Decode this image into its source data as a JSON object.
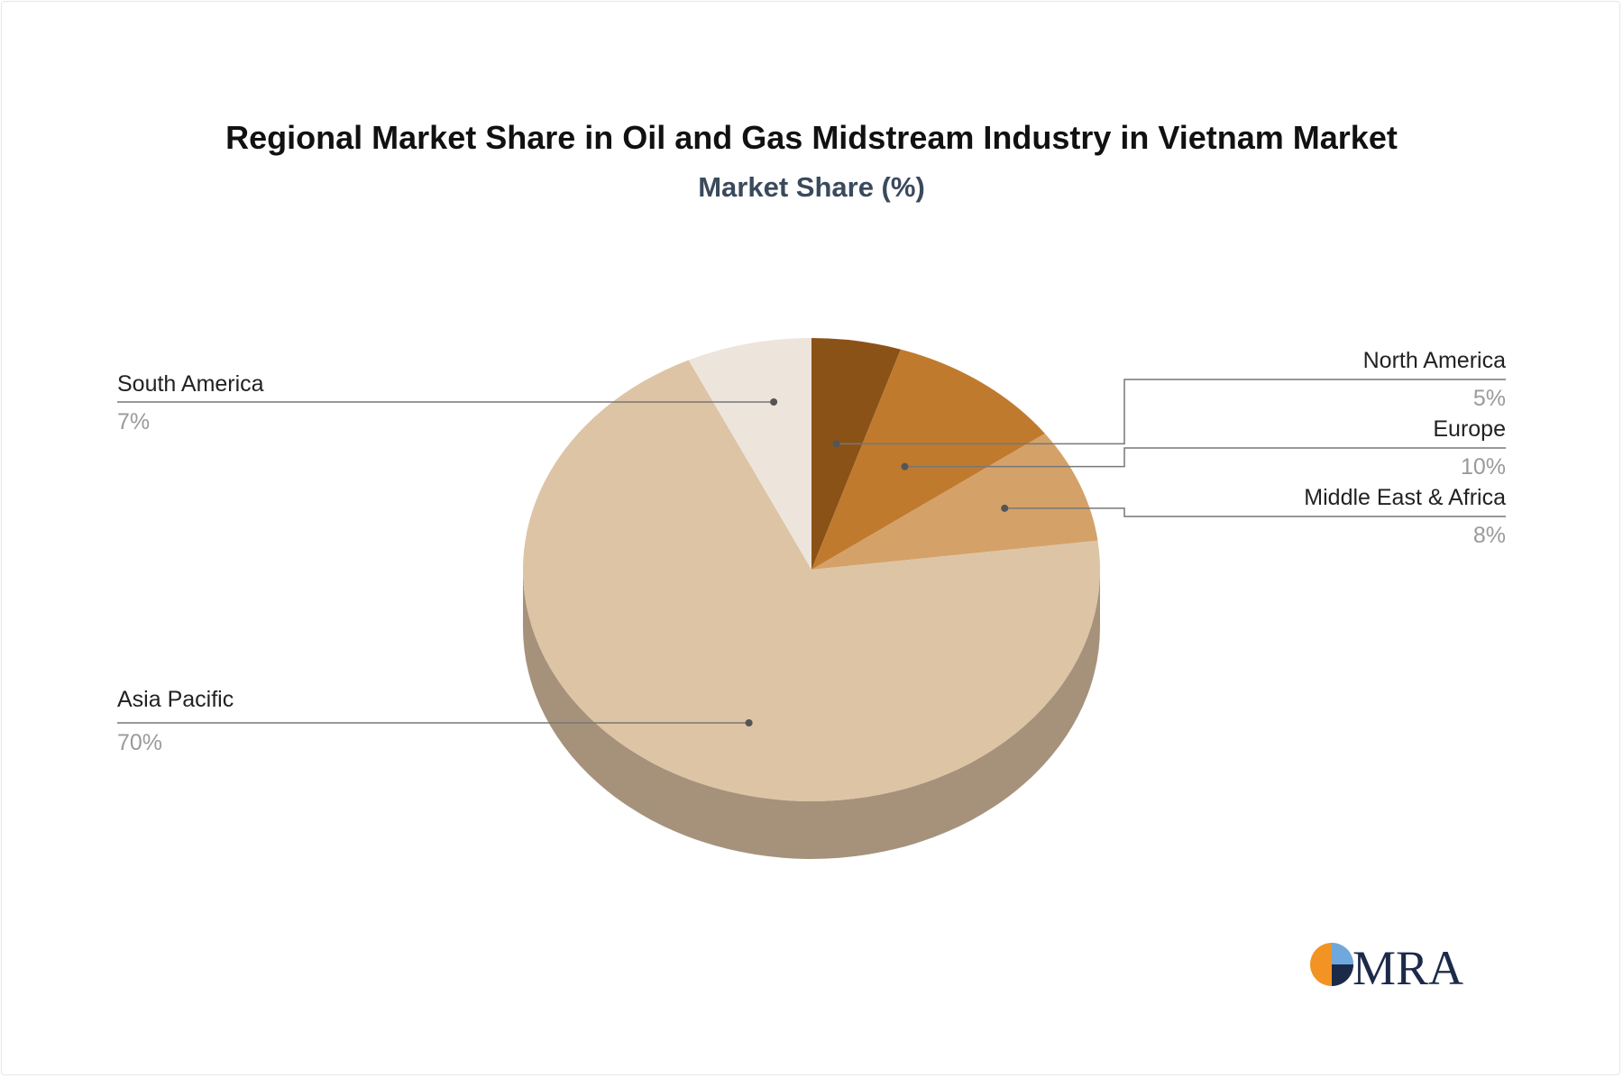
{
  "chart_data": {
    "type": "pie",
    "title": "Regional Market Share in Oil and Gas Midstream Industry in Vietnam Market",
    "subtitle": "Market Share (%)",
    "unit": "%",
    "categories": [
      "North America",
      "Europe",
      "Middle East & Africa",
      "Asia Pacific",
      "South America"
    ],
    "values": [
      5,
      10,
      8,
      70,
      7
    ],
    "value_labels": [
      "5%",
      "10%",
      "8%",
      "70%",
      "7%"
    ],
    "colors": [
      "#8b5218",
      "#c07a2e",
      "#d4a268",
      "#ddc4a5",
      "#ede4dc"
    ],
    "side_color": "#a6927b",
    "label_placement": [
      "right",
      "right",
      "right",
      "left",
      "left"
    ],
    "legend": "none (leader-line labels)"
  },
  "logo": {
    "text": "MRA",
    "accent_color": "#f39323",
    "text_color": "#1c2a4a"
  }
}
